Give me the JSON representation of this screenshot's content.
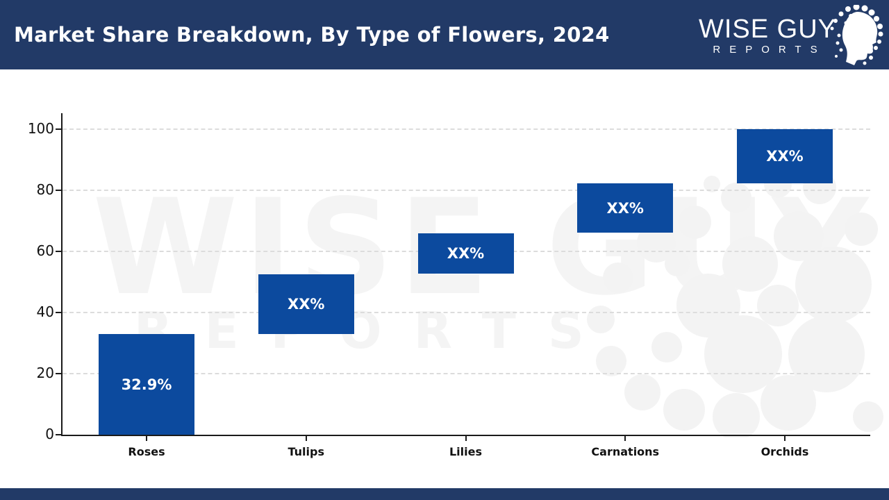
{
  "header": {
    "title": "Market Share Breakdown, By Type of Flowers, 2024",
    "bg_color": "#223A67",
    "logo": {
      "line1": "WISE GUY",
      "line2": "REPORTS"
    }
  },
  "watermark": {
    "line1": "WISE GUY",
    "line2": "REPORTS"
  },
  "footer": {
    "bg_color": "#223A67"
  },
  "chart_data": {
    "type": "bar",
    "subtype": "waterfall",
    "title": "Market Share Breakdown, By Type of Flowers, 2024",
    "categories": [
      "Roses",
      "Tulips",
      "Lilies",
      "Carnations",
      "Orchids"
    ],
    "segments": [
      {
        "category": "Roses",
        "start": 0,
        "end": 32.9,
        "label": "32.9%"
      },
      {
        "category": "Tulips",
        "start": 33.0,
        "end": 52.5,
        "label": "XX%"
      },
      {
        "category": "Lilies",
        "start": 52.7,
        "end": 65.9,
        "label": "XX%"
      },
      {
        "category": "Carnations",
        "start": 66.1,
        "end": 82.3,
        "label": "XX%"
      },
      {
        "category": "Orchids",
        "start": 82.3,
        "end": 100,
        "label": "XX%"
      }
    ],
    "y_ticks": [
      0,
      20,
      40,
      60,
      80,
      100
    ],
    "ylim": [
      0,
      105
    ],
    "xlabel": "",
    "ylabel": "",
    "grid": "horizontal dashed",
    "legend": "none",
    "bar_color": "#0C4A9E",
    "bar_label_color": "#FFFFFF",
    "axis_color": "#1a1a1a",
    "grid_color": "#dcdcdc"
  }
}
